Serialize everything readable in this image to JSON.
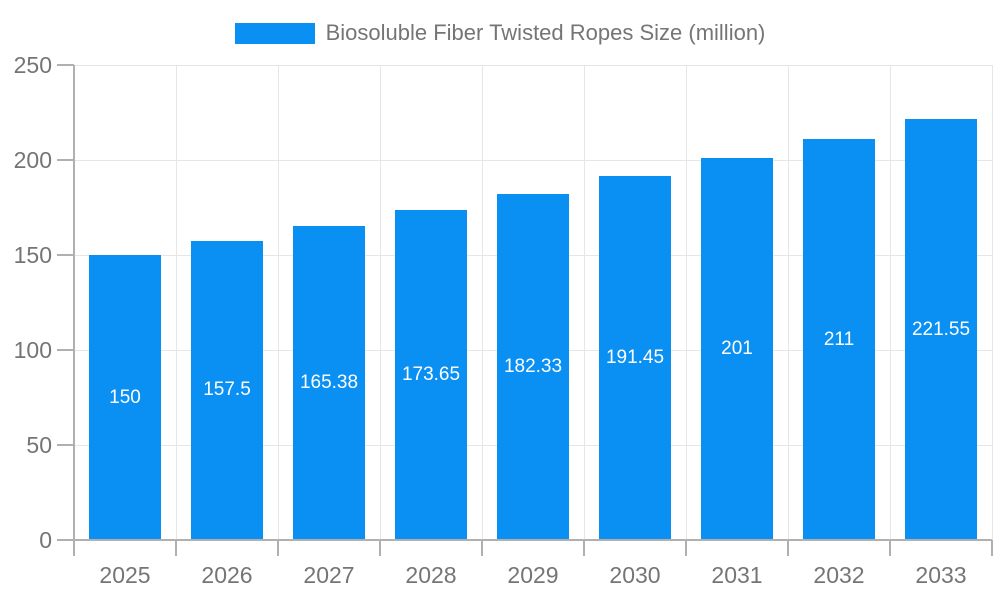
{
  "legend": {
    "label": "Biosoluble Fiber Twisted Ropes Size (million)"
  },
  "colors": {
    "bar": "#0a90f2",
    "axis": "#b0b0b0",
    "grid": "#e6e6e6",
    "text": "#757575",
    "bar_label": "#ffffff",
    "background": "#ffffff"
  },
  "chart_data": {
    "type": "bar",
    "title": "Biosoluble Fiber Twisted Ropes Size (million)",
    "categories": [
      "2025",
      "2026",
      "2027",
      "2028",
      "2029",
      "2030",
      "2031",
      "2032",
      "2033"
    ],
    "series": [
      {
        "name": "Biosoluble Fiber Twisted Ropes Size (million)",
        "values": [
          150,
          157.5,
          165.38,
          173.65,
          182.33,
          191.45,
          201,
          211,
          221.55
        ]
      }
    ],
    "value_labels": [
      "150",
      "157.5",
      "165.38",
      "173.65",
      "182.33",
      "191.45",
      "201",
      "211",
      "221.55"
    ],
    "xlabel": "",
    "ylabel": "",
    "ylim": [
      0,
      250
    ],
    "yticks": [
      0,
      50,
      100,
      150,
      200,
      250
    ],
    "grid": true,
    "legend_position": "top",
    "value_labels_inside_bars": true
  }
}
